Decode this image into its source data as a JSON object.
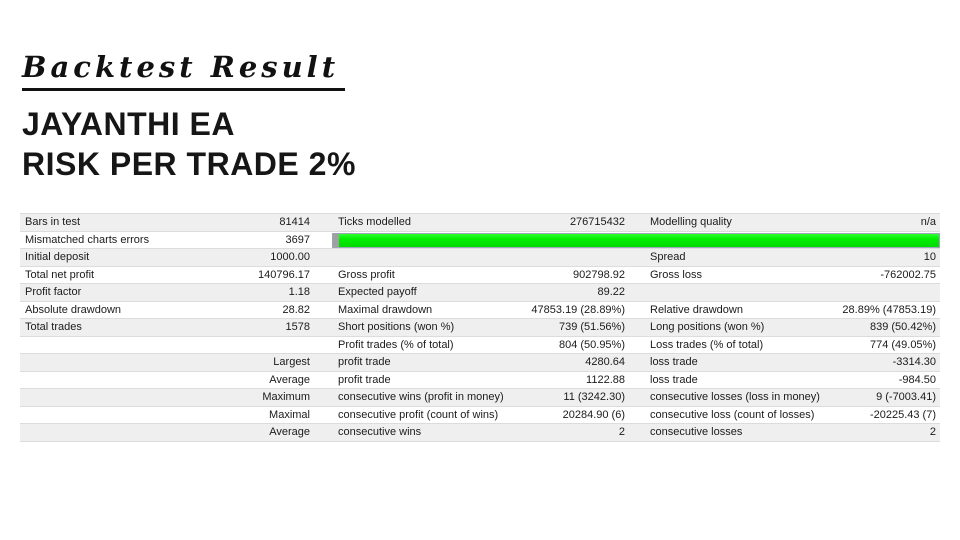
{
  "header": {
    "title": "Backtest Result",
    "subtitle_line1": "JAYANTHI EA",
    "subtitle_line2": "RISK PER TRADE 2%"
  },
  "colors": {
    "row_stripe": "#efefef",
    "row_border": "#dcdcdc",
    "text": "#1b1b1b",
    "bar_green": "#00ee00",
    "bar_gray": "#a0a0a0",
    "bar_border": "#9aa7b8"
  },
  "table": {
    "rows": [
      {
        "l1": "Bars in test",
        "v1": "81414",
        "l2": "Ticks modelled",
        "v2": "276715432",
        "l3": "Modelling quality",
        "v3": "n/a"
      },
      {
        "l1": "Mismatched charts errors",
        "v1": "3697",
        "bar": true
      },
      {
        "l1": "Initial deposit",
        "v1": "1000.00",
        "l2": "",
        "v2": "",
        "l3": "Spread",
        "v3": "10"
      },
      {
        "l1": "Total net profit",
        "v1": "140796.17",
        "l2": "Gross profit",
        "v2": "902798.92",
        "l3": "Gross loss",
        "v3": "-762002.75"
      },
      {
        "l1": "Profit factor",
        "v1": "1.18",
        "l2": "Expected payoff",
        "v2": "89.22",
        "l3": "",
        "v3": ""
      },
      {
        "l1": "Absolute drawdown",
        "v1": "28.82",
        "l2": "Maximal drawdown",
        "v2": "47853.19 (28.89%)",
        "l3": "Relative drawdown",
        "v3": "28.89% (47853.19)"
      },
      {
        "l1": "Total trades",
        "v1": "1578",
        "l2": "Short positions (won %)",
        "v2": "739 (51.56%)",
        "l3": "Long positions (won %)",
        "v3": "839 (50.42%)"
      },
      {
        "l1": "",
        "v1": "",
        "l2": "Profit trades (% of total)",
        "v2": "804 (50.95%)",
        "l3": "Loss trades (% of total)",
        "v3": "774 (49.05%)"
      },
      {
        "l1": "",
        "v1": "Largest",
        "l2": "profit trade",
        "v2": "4280.64",
        "l3": "loss trade",
        "v3": "-3314.30"
      },
      {
        "l1": "",
        "v1": "Average",
        "l2": "profit trade",
        "v2": "1122.88",
        "l3": "loss trade",
        "v3": "-984.50"
      },
      {
        "l1": "",
        "v1": "Maximum",
        "l2": "consecutive wins (profit in money)",
        "v2": "11 (3242.30)",
        "l3": "consecutive losses (loss in money)",
        "v3": "9 (-7003.41)"
      },
      {
        "l1": "",
        "v1": "Maximal",
        "l2": "consecutive profit (count of wins)",
        "v2": "20284.90 (6)",
        "l3": "consecutive loss (count of losses)",
        "v3": "-20225.43 (7)"
      },
      {
        "l1": "",
        "v1": "Average",
        "l2": "consecutive wins",
        "v2": "2",
        "l3": "consecutive losses",
        "v3": "2"
      }
    ]
  }
}
